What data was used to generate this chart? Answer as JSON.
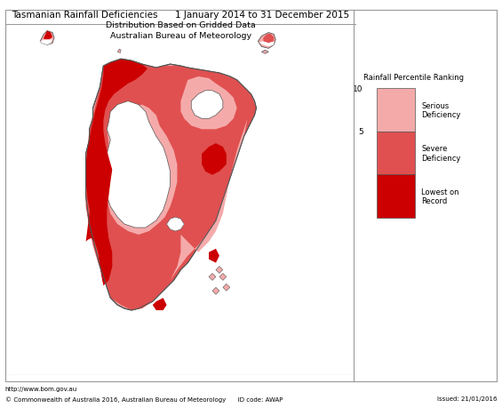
{
  "title_main": "Tasmanian Rainfall Deficiencies      1 January 2014 to 31 December 2015",
  "title_sub1": "Distribution Based on Gridded Data",
  "title_sub2": "Australian Bureau of Meteorology",
  "footer1": "http://www.bom.gov.au",
  "footer2": "© Commonwealth of Australia 2016, Australian Bureau of Meteorology      ID code: AWAP",
  "footer3": "Issued: 21/01/2016",
  "legend_title": "Rainfall Percentile Ranking",
  "background_color": "#FFFFFF",
  "colors": {
    "serious": "#F5AAAA",
    "severe": "#E05050",
    "lowest": "#CC0000",
    "white": "#FFFFFF",
    "outline": "#555555"
  }
}
